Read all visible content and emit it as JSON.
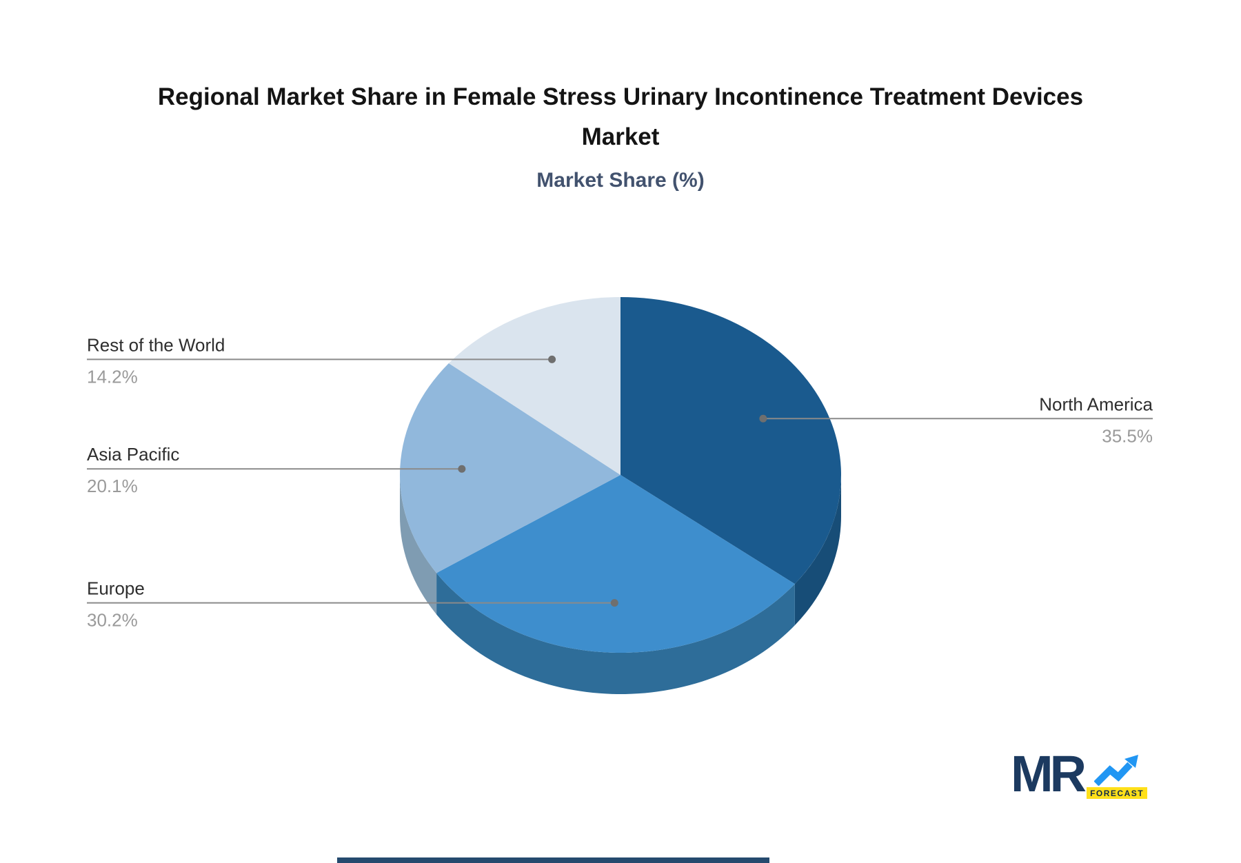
{
  "page": {
    "background": "#FFFFFF",
    "bottom_bar_color": "#254A6E"
  },
  "titles": {
    "title_color": "#141414",
    "subtitle_color": "#42526E"
  },
  "chart_data": {
    "type": "pie",
    "title": "Regional Market Share in Female Stress Urinary Incontinence Treatment Devices Market",
    "subtitle": "Market Share (%)",
    "value_suffix": "%",
    "direction": "clockwise",
    "start_angle_deg": 0,
    "legend_position": "none",
    "effect": "3d",
    "slices": [
      {
        "label": "North America",
        "value": 35.5,
        "display": "35.5%",
        "color": "#1A5A8E",
        "rim_color": "#174D77",
        "label_side": "right"
      },
      {
        "label": "Europe",
        "value": 30.2,
        "display": "30.2%",
        "color": "#3E8ECD",
        "rim_color": "#2E6D99",
        "label_side": "left"
      },
      {
        "label": "Asia Pacific",
        "value": 20.1,
        "display": "20.1%",
        "color": "#91B8DC",
        "rim_color": "#7F9CB2",
        "label_side": "left"
      },
      {
        "label": "Rest of the World",
        "value": 14.2,
        "display": "14.2%",
        "color": "#DAE4EE",
        "rim_color": "#B4C4D4",
        "label_side": "left"
      }
    ],
    "label_style": {
      "name_color": "#2E2E2E",
      "value_color": "#9A9A9A",
      "line_color": "#8A8A8A",
      "dot_color": "#6F6F6F"
    }
  },
  "logo": {
    "text": "MR",
    "badge": "FORECAST",
    "mr_color": "#1C3A60",
    "arrow_color": "#2196F3",
    "badge_bg": "#FFE01A",
    "badge_text_color": "#142B47"
  }
}
